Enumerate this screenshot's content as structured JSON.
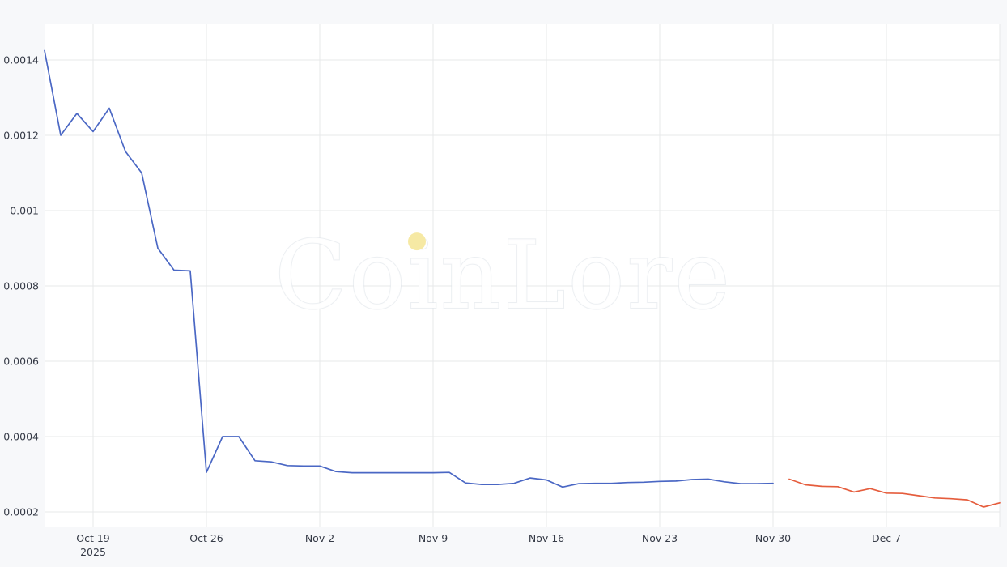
{
  "watermark": "CoinLore",
  "colors": {
    "page_bg": "#f7f8fa",
    "plot_bg": "#ffffff",
    "grid": "#e7e8ea",
    "tick_text": "#363b47"
  },
  "chart_data": {
    "type": "line",
    "title": "",
    "xlabel": "",
    "ylabel": "",
    "x_unit": "days",
    "start_date": "2025-10-16",
    "grid": true,
    "legend": false,
    "ylim": [
      0.000161,
      0.001495
    ],
    "yticks": [
      {
        "value": 0.0002,
        "label": "0.0002"
      },
      {
        "value": 0.0004,
        "label": "0.0004"
      },
      {
        "value": 0.0006,
        "label": "0.0006"
      },
      {
        "value": 0.0008,
        "label": "0.0008"
      },
      {
        "value": 0.001,
        "label": "0.001"
      },
      {
        "value": 0.0012,
        "label": "0.0012"
      },
      {
        "value": 0.0014,
        "label": "0.0014"
      }
    ],
    "xticks": [
      {
        "day": 3,
        "label": "Oct 19",
        "sublabel": "2025"
      },
      {
        "day": 10,
        "label": "Oct 26",
        "sublabel": ""
      },
      {
        "day": 17,
        "label": "Nov 2",
        "sublabel": ""
      },
      {
        "day": 24,
        "label": "Nov 9",
        "sublabel": ""
      },
      {
        "day": 31,
        "label": "Nov 16",
        "sublabel": ""
      },
      {
        "day": 38,
        "label": "Nov 23",
        "sublabel": ""
      },
      {
        "day": 45,
        "label": "Nov 30",
        "sublabel": ""
      },
      {
        "day": 52,
        "label": "Dec 7",
        "sublabel": ""
      },
      {
        "day": 59,
        "label": "",
        "sublabel": ""
      }
    ],
    "series": [
      {
        "name": "price-line-history",
        "color": "#4a67c4",
        "date_range": "Oct 16 - Nov 30, 2025",
        "start_day": 0,
        "values": [
          0.001425,
          0.0012,
          0.001258,
          0.00121,
          0.001272,
          0.001157,
          0.0011,
          0.0009,
          0.000842,
          0.00084,
          0.000305,
          0.0004,
          0.0004,
          0.000336,
          0.000333,
          0.000323,
          0.000322,
          0.000322,
          0.000307,
          0.000304,
          0.000304,
          0.000304,
          0.000304,
          0.000304,
          0.000304,
          0.000305,
          0.000277,
          0.000273,
          0.000273,
          0.000276,
          0.00029,
          0.000285,
          0.000266,
          0.000275,
          0.000276,
          0.000276,
          0.000278,
          0.000279,
          0.000281,
          0.000282,
          0.000286,
          0.000287,
          0.00028,
          0.000275,
          0.000275,
          0.000276
        ]
      },
      {
        "name": "price-line-recent",
        "color": "#e55d3d",
        "date_range": "Dec 1 - Dec 14, 2025",
        "start_day": 46,
        "values": [
          0.000287,
          0.000272,
          0.000268,
          0.000267,
          0.000253,
          0.000262,
          0.00025,
          0.000249,
          0.000243,
          0.000237,
          0.000235,
          0.000232,
          0.000213,
          0.000224
        ]
      }
    ],
    "marker": {
      "day": 23,
      "value": 0.000918,
      "color": "#f6e9a4"
    }
  }
}
